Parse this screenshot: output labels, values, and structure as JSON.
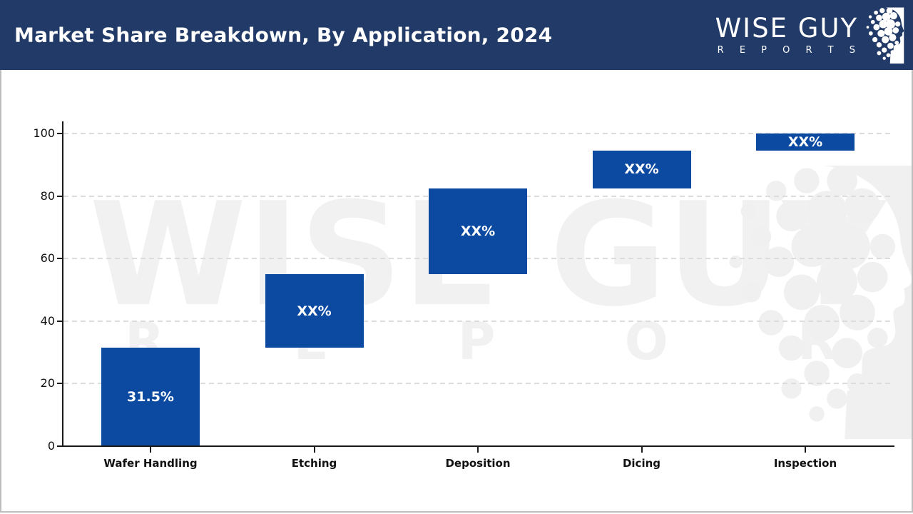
{
  "header": {
    "title": "Market Share Breakdown, By Application, 2024",
    "bg_color": "#213a67",
    "logo": {
      "line1": "WISE GUY",
      "line2": "R E P O R T S"
    }
  },
  "watermark": {
    "line1": "WISE GUY",
    "line2": "R E P O R T S"
  },
  "chart_data": {
    "type": "bar",
    "subtype": "waterfall",
    "title": "Market Share Breakdown, By Application, 2024",
    "categories": [
      "Wafer Handling",
      "Etching",
      "Deposition",
      "Dicing",
      "Inspection"
    ],
    "series": [
      {
        "name": "Market Share (%)",
        "segments": [
          {
            "category": "Wafer Handling",
            "start": 0,
            "end": 31.5,
            "label": "31.5%"
          },
          {
            "category": "Etching",
            "start": 31.5,
            "end": 55,
            "label": "XX%"
          },
          {
            "category": "Deposition",
            "start": 55,
            "end": 82.5,
            "label": "XX%"
          },
          {
            "category": "Dicing",
            "start": 82.5,
            "end": 94.5,
            "label": "XX%"
          },
          {
            "category": "Inspection",
            "start": 94.5,
            "end": 100,
            "label": "XX%"
          }
        ]
      }
    ],
    "xlabel": "",
    "ylabel": "",
    "ylim": [
      0,
      104
    ],
    "y_ticks": [
      0,
      20,
      40,
      60,
      80,
      100
    ],
    "grid": "horizontal-dashed",
    "legend": "none",
    "bar_color": "#0c4aa2",
    "bar_label_color": "#ffffff"
  }
}
